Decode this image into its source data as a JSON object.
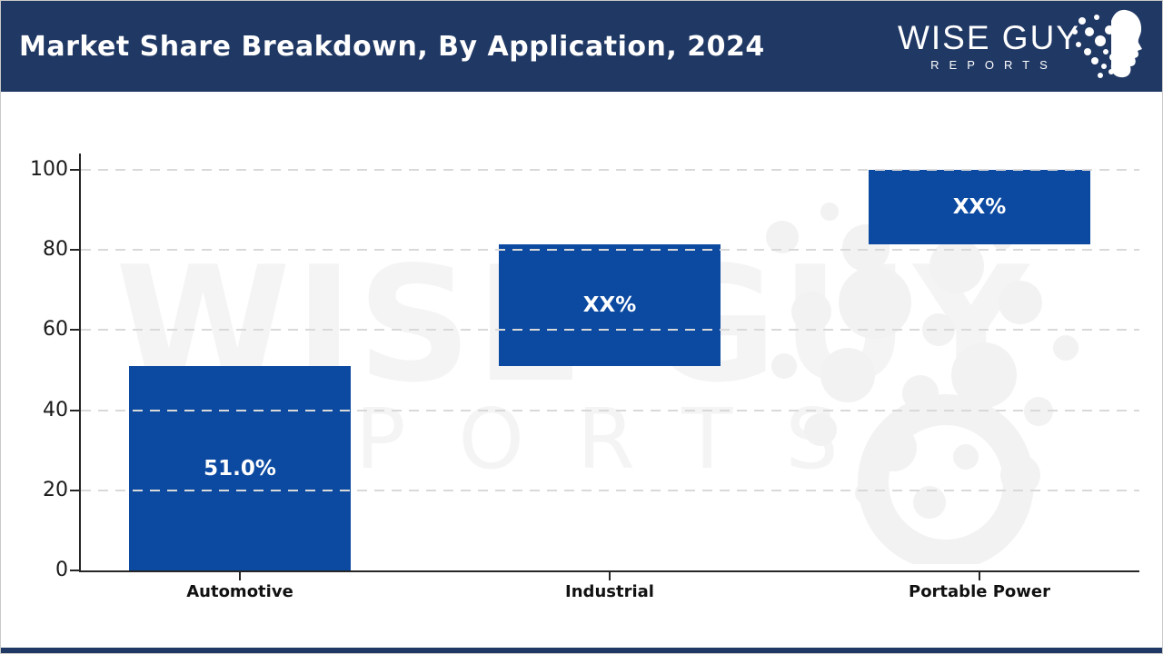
{
  "header": {
    "title": "Market Share Breakdown, By Application, 2024",
    "logo": {
      "line1": "WISE GUY",
      "line2": "REPORTS"
    }
  },
  "watermark": {
    "line1": "WISE GUY",
    "line2": "REPORTS"
  },
  "colors": {
    "header_navy": "#203864",
    "bar_blue": "#0c4aa1",
    "grid_gray": "#d9d9d9",
    "axis_dark": "#262626",
    "watermark_gray": "#f4f4f4"
  },
  "chart_data": {
    "type": "bar",
    "subtype": "waterfall-breakdown",
    "title": "Market Share Breakdown, By Application, 2024",
    "categories": [
      "Automotive",
      "Industrial",
      "Portable Power"
    ],
    "series": [
      {
        "name": "Market share (%)",
        "starts": [
          0,
          51.0,
          81.5
        ],
        "values": [
          51.0,
          30.5,
          18.5
        ],
        "bar_labels": [
          "51.0%",
          "XX%",
          "XX%"
        ]
      }
    ],
    "xlabel": "",
    "ylabel": "",
    "ylim": [
      0,
      100
    ],
    "yticks": [
      0,
      20,
      40,
      60,
      80,
      100
    ],
    "grid": "horizontal-dashed",
    "legend": "none",
    "bar_color": "#0c4aa1"
  }
}
